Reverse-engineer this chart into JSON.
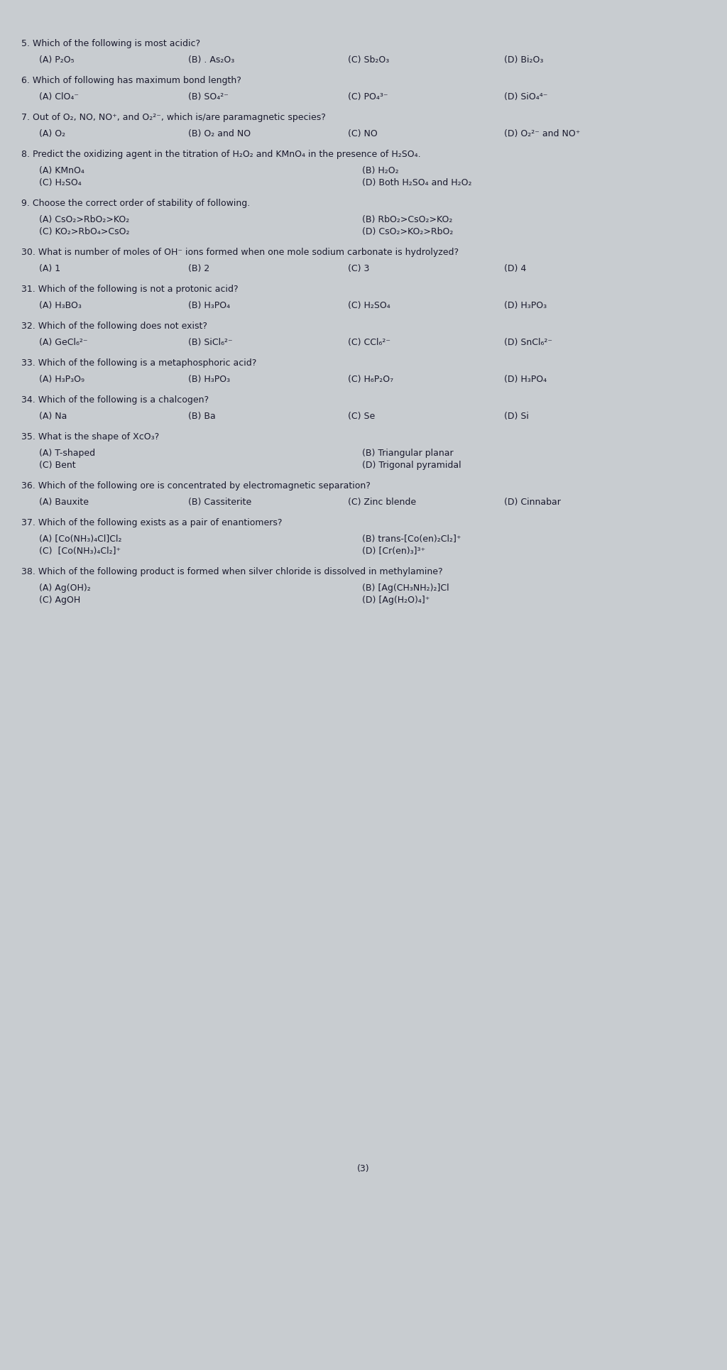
{
  "bg_color": "#c8ccd0",
  "text_color": "#1a1a2e",
  "font_size": 9.0,
  "page_number": "(3)",
  "questions": [
    {
      "number": "5",
      "question": "Which of the following is most acidic?",
      "options": [
        {
          "label": "(A)",
          "text": "P₂O₅"
        },
        {
          "label": "(B)",
          "text": ". As₂O₃"
        },
        {
          "label": "(C)",
          "text": "Sb₂O₃"
        },
        {
          "label": "(D)",
          "text": "Bi₂O₃"
        }
      ],
      "layout": "single_row"
    },
    {
      "number": "6",
      "question": "Which of following has maximum bond length?",
      "options": [
        {
          "label": "(A)",
          "text": "ClO₄⁻"
        },
        {
          "label": "(B)",
          "text": "SO₄²⁻"
        },
        {
          "label": "(C)",
          "text": "PO₄³⁻"
        },
        {
          "label": "(D)",
          "text": "SiO₄⁴⁻"
        }
      ],
      "layout": "single_row"
    },
    {
      "number": "7",
      "question": "Out of O₂, NO, NO⁺, and O₂²⁻, which is/are paramagnetic species?",
      "options": [
        {
          "label": "(A)",
          "text": "O₂"
        },
        {
          "label": "(B)",
          "text": "O₂ and NO"
        },
        {
          "label": "(C)",
          "text": "NO"
        },
        {
          "label": "(D)",
          "text": "O₂²⁻ and NO⁺"
        }
      ],
      "layout": "single_row"
    },
    {
      "number": "8",
      "question": "Predict the oxidizing agent in the titration of H₂O₂ and KMnO₄ in the presence of H₂SO₄.",
      "options": [
        {
          "label": "(A)",
          "text": "KMnO₄"
        },
        {
          "label": "(B)",
          "text": "H₂O₂"
        },
        {
          "label": "(C)",
          "text": "H₂SO₄"
        },
        {
          "label": "(D)",
          "text": "Both H₂SO₄ and H₂O₂"
        }
      ],
      "layout": "two_col"
    },
    {
      "number": "9",
      "question": "Choose the correct order of stability of following.",
      "options": [
        {
          "label": "(A)",
          "text": "CsO₂>RbO₂>KO₂"
        },
        {
          "label": "(B)",
          "text": "RbO₂>CsO₂>KO₂"
        },
        {
          "label": "(C)",
          "text": "KO₂>RbO₄>CsO₂"
        },
        {
          "label": "(D)",
          "text": "CsO₂>KO₂>RbO₂"
        }
      ],
      "layout": "two_col"
    },
    {
      "number": "30",
      "question": "What is number of moles of OH⁻ ions formed when one mole sodium carbonate is hydrolyzed?",
      "options": [
        {
          "label": "(A)",
          "text": "1"
        },
        {
          "label": "(B)",
          "text": "2"
        },
        {
          "label": "(C)",
          "text": "3"
        },
        {
          "label": "(D)",
          "text": "4"
        }
      ],
      "layout": "single_row",
      "wrap": true
    },
    {
      "number": "31",
      "question": "Which of the following is not a protonic acid?",
      "options": [
        {
          "label": "(A)",
          "text": "H₃BO₃"
        },
        {
          "label": "(B)",
          "text": "H₃PO₄"
        },
        {
          "label": "(C)",
          "text": "H₂SO₄"
        },
        {
          "label": "(D)",
          "text": "H₃PO₃"
        }
      ],
      "layout": "single_row"
    },
    {
      "number": "32",
      "question": "Which of the following does not exist?",
      "options": [
        {
          "label": "(A)",
          "text": "GeCl₆²⁻"
        },
        {
          "label": "(B)",
          "text": "SiCl₆²⁻"
        },
        {
          "label": "(C)",
          "text": "CCl₆²⁻"
        },
        {
          "label": "(D)",
          "text": "SnCl₆²⁻"
        }
      ],
      "layout": "single_row"
    },
    {
      "number": "33",
      "question": "Which of the following is a metaphosphoric acid?",
      "options": [
        {
          "label": "(A)",
          "text": "H₃P₃O₉"
        },
        {
          "label": "(B)",
          "text": "H₃PO₃"
        },
        {
          "label": "(C)",
          "text": "H₆P₂O₇"
        },
        {
          "label": "(D)",
          "text": "H₃PO₄"
        }
      ],
      "layout": "single_row"
    },
    {
      "number": "34",
      "question": "Which of the following is a chalcogen?",
      "options": [
        {
          "label": "(A)",
          "text": "Na"
        },
        {
          "label": "(B)",
          "text": "Ba"
        },
        {
          "label": "(C)",
          "text": "Se"
        },
        {
          "label": "(D)",
          "text": "Si"
        }
      ],
      "layout": "single_row"
    },
    {
      "number": "35",
      "question": "What is the shape of XcO₃?",
      "options": [
        {
          "label": "(A)",
          "text": "T-shaped"
        },
        {
          "label": "(B)",
          "text": "Triangular planar"
        },
        {
          "label": "(C)",
          "text": "Bent"
        },
        {
          "label": "(D)",
          "text": "Trigonal pyramidal"
        }
      ],
      "layout": "two_col"
    },
    {
      "number": "36",
      "question": "Which of the following ore is concentrated by electromagnetic separation?",
      "options": [
        {
          "label": "(A)",
          "text": "Bauxite"
        },
        {
          "label": "(B)",
          "text": "Cassiterite"
        },
        {
          "label": "(C)",
          "text": "Zinc blende"
        },
        {
          "label": "(D)",
          "text": "Cinnabar"
        }
      ],
      "layout": "single_row"
    },
    {
      "number": "37",
      "question": "Which of the following exists as a pair of enantiomers?",
      "options": [
        {
          "label": "(A)",
          "text": "[Co(NH₃)₄Cl]Cl₂"
        },
        {
          "label": "(B)",
          "text": "trans-[Co(en)₂Cl₂]⁺"
        },
        {
          "label": "(C)",
          "text": " [Co(NH₃)₄Cl₂]⁺"
        },
        {
          "label": "(D)",
          "text": "[Cr(en)₃]³⁺"
        }
      ],
      "layout": "two_col"
    },
    {
      "number": "38",
      "question": "Which of the following product is formed when silver chloride is dissolved in methylamine?",
      "options": [
        {
          "label": "(A)",
          "text": "Ag(OH)₂"
        },
        {
          "label": "(B)",
          "text": "[Ag(CH₃NH₂)₂]Cl"
        },
        {
          "label": "(C)",
          "text": "AgOH"
        },
        {
          "label": "(D)",
          "text": "[Ag(H₂O)₄]⁺"
        }
      ],
      "layout": "two_col",
      "wrap": true
    }
  ]
}
